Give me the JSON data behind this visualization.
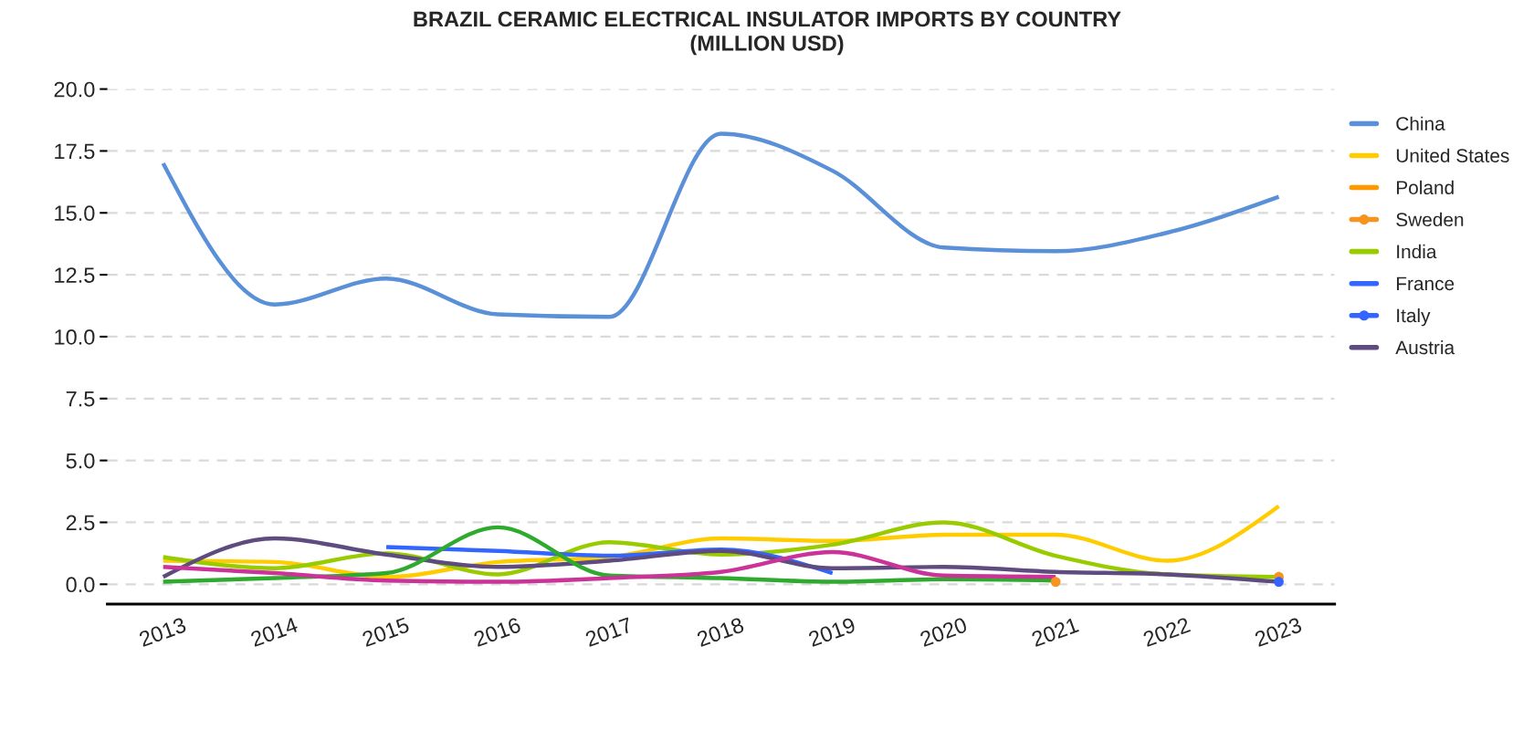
{
  "chart_data": {
    "type": "line",
    "title": "BRAZIL CERAMIC ELECTRICAL INSULATOR IMPORTS BY COUNTRY\n(MILLION USD)",
    "x": [
      2013,
      2014,
      2015,
      2016,
      2017,
      2018,
      2019,
      2020,
      2021,
      2022,
      2023
    ],
    "xlim": [
      2012.5,
      2023.5
    ],
    "xticks": [
      2013,
      2014,
      2015,
      2016,
      2017,
      2018,
      2019,
      2020,
      2021,
      2022,
      2023
    ],
    "ylim": [
      -0.8,
      20
    ],
    "yticks": [
      {
        "value": 0,
        "label": "0.0"
      },
      {
        "value": 2.5,
        "label": "2.5"
      },
      {
        "value": 5,
        "label": "5.0"
      },
      {
        "value": 7.5,
        "label": "7.5"
      },
      {
        "value": 10,
        "label": "10.0"
      },
      {
        "value": 12.5,
        "label": "12.5"
      },
      {
        "value": 15,
        "label": "15.0"
      },
      {
        "value": 17.5,
        "label": "17.5"
      },
      {
        "value": 20,
        "label": "20.0"
      }
    ],
    "grid": "y",
    "legend": "right",
    "series": [
      {
        "name": "China",
        "color": "#5a90d8",
        "values": [
          17.0,
          11.3,
          12.35,
          10.9,
          10.8,
          18.2,
          16.7,
          13.6,
          13.45,
          14.2,
          15.65
        ]
      },
      {
        "name": "United States",
        "color": "#ffcc00",
        "values": [
          0.95,
          0.9,
          0.3,
          0.9,
          1.1,
          1.85,
          1.75,
          2.0,
          2.0,
          0.95,
          3.15
        ]
      },
      {
        "name": "Poland",
        "color": "#ff9900",
        "values": [
          null,
          null,
          null,
          null,
          null,
          null,
          null,
          null,
          null,
          null,
          null
        ]
      },
      {
        "name": "Sweden",
        "type": "scatter",
        "color": "#f7941d",
        "marker": "circle",
        "values": [
          null,
          null,
          null,
          null,
          null,
          null,
          null,
          null,
          0.1,
          null,
          0.3
        ]
      },
      {
        "name": "India",
        "color": "#99cc00",
        "values": [
          1.1,
          0.65,
          1.25,
          0.4,
          1.7,
          1.2,
          1.6,
          2.5,
          1.15,
          0.4,
          0.3
        ]
      },
      {
        "name": "France",
        "color": "#3366ff",
        "values": [
          null,
          null,
          1.5,
          1.35,
          1.15,
          1.4,
          0.45,
          null,
          null,
          null,
          null
        ]
      },
      {
        "name": "Italy",
        "type": "scatter",
        "color": "#3366ff",
        "marker": "circle",
        "values": [
          null,
          null,
          null,
          null,
          null,
          null,
          null,
          null,
          null,
          null,
          0.1
        ]
      },
      {
        "name": "Austria",
        "color": "#5e4b7f",
        "values": [
          0.3,
          1.85,
          1.2,
          0.7,
          0.95,
          1.35,
          0.65,
          0.7,
          0.5,
          0.4,
          0.1
        ]
      },
      {
        "color": "#2eaa2e",
        "values": [
          0.1,
          0.25,
          0.45,
          2.3,
          0.35,
          0.25,
          0.1,
          0.2,
          0.15,
          null,
          null
        ]
      },
      {
        "color": "#cc3399",
        "values": [
          0.7,
          0.45,
          0.15,
          0.1,
          0.25,
          0.5,
          1.3,
          0.35,
          0.3,
          null,
          null
        ]
      }
    ]
  }
}
